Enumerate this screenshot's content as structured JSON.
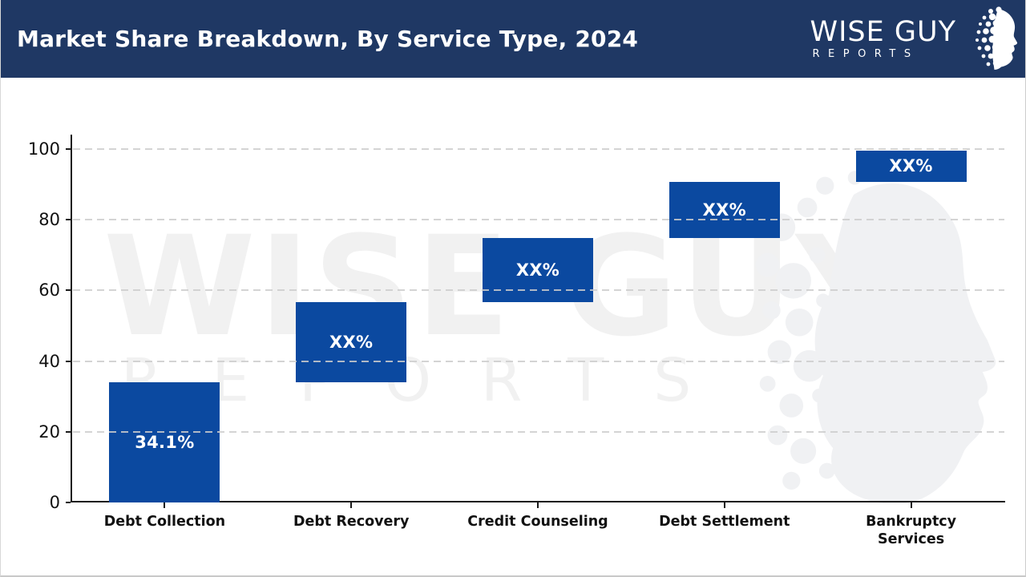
{
  "header": {
    "title": "Market Share Breakdown, By Service Type, 2024",
    "logo": {
      "line1": "WISE GUY",
      "line2": "REPORTS"
    }
  },
  "watermark": {
    "line1": "WISE GUY",
    "line2": "REPORTS"
  },
  "colors": {
    "header_bg": "#1f3864",
    "bar": "#0b49a0",
    "axis": "#1a1a1a",
    "grid_dash": "#d4d4d4",
    "value_label": "#ffffff",
    "tick_label": "#111111",
    "watermark": "#f0f1f3",
    "background": "#ffffff"
  },
  "chart_data": {
    "type": "bar",
    "variant": "floating-waterfall",
    "title": "Market Share Breakdown, By Service Type, 2024",
    "categories": [
      "Debt Collection",
      "Debt Recovery",
      "Credit Counseling",
      "Debt Settlement",
      "Bankruptcy Services"
    ],
    "bars": [
      {
        "category": "Debt Collection",
        "start": 0,
        "end": 34.1,
        "label": "34.1%"
      },
      {
        "category": "Debt Recovery",
        "start": 34.1,
        "end": 56.8,
        "label": "XX%"
      },
      {
        "category": "Credit Counseling",
        "start": 56.8,
        "end": 74.9,
        "label": "XX%"
      },
      {
        "category": "Debt Settlement",
        "start": 74.9,
        "end": 90.8,
        "label": "XX%"
      },
      {
        "category": "Bankruptcy Services",
        "start": 90.8,
        "end": 99.5,
        "label": "XX%"
      }
    ],
    "xlabel": "",
    "ylabel": "",
    "ylim": [
      0,
      105
    ],
    "yticks": [
      0,
      20,
      40,
      60,
      80,
      100
    ],
    "gridline_values": [
      20,
      40,
      60,
      80,
      100
    ],
    "grid": "horizontal-dashed",
    "legend": "none"
  }
}
